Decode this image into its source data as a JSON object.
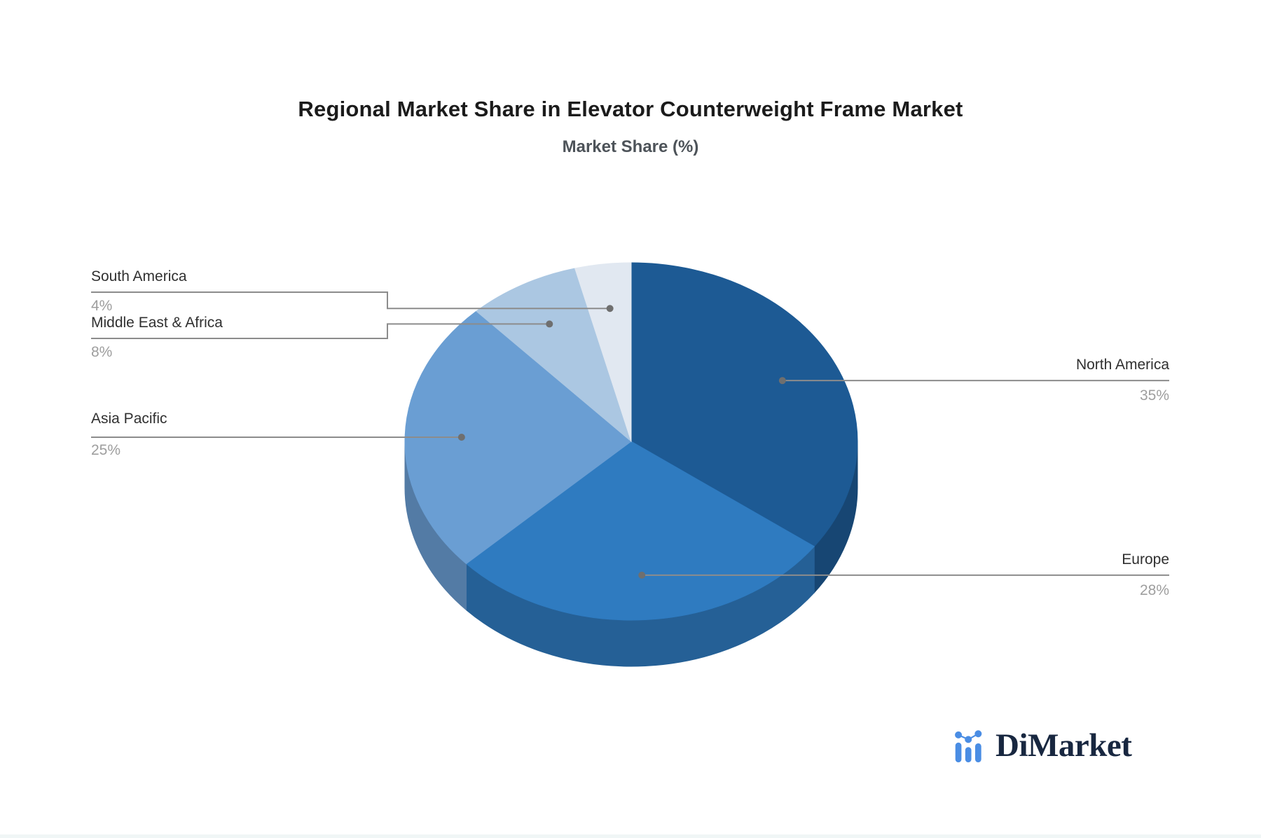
{
  "header": {
    "title": "Regional Market Share in Elevator Counterweight Frame Market",
    "subtitle": "Market Share (%)"
  },
  "chart_data": {
    "type": "pie",
    "title": "Regional Market Share in Elevator Counterweight Frame Market",
    "subtitle": "Market Share (%)",
    "unit": "%",
    "categories": [
      "North America",
      "Europe",
      "Asia Pacific",
      "Middle East & Africa",
      "South America"
    ],
    "values": [
      35,
      28,
      25,
      8,
      4
    ],
    "colors": [
      "#1d5a94",
      "#2f7bc0",
      "#6a9ed3",
      "#abc7e2",
      "#e1e8f1"
    ],
    "layout_hints": {
      "style": "3d",
      "start_angle": "top",
      "direction": "clockwise",
      "legend": "off",
      "labels": "outside-with-leader-lines"
    }
  },
  "labels": {
    "north_america": {
      "name": "North America",
      "value": "35%"
    },
    "europe": {
      "name": "Europe",
      "value": "28%"
    },
    "asia_pacific": {
      "name": "Asia Pacific",
      "value": "25%"
    },
    "mea": {
      "name": "Middle East & Africa",
      "value": "8%"
    },
    "south_america": {
      "name": "South America",
      "value": "4%"
    }
  },
  "logo": {
    "text": "DiMarket",
    "icon": "bar-line-chart-logo-icon"
  },
  "style": {
    "leader_line_color": "#8c8c8c",
    "leader_dot_color": "#6f6f6f",
    "logo_accent": "#4a8de4",
    "logo_text_color": "#182740"
  }
}
